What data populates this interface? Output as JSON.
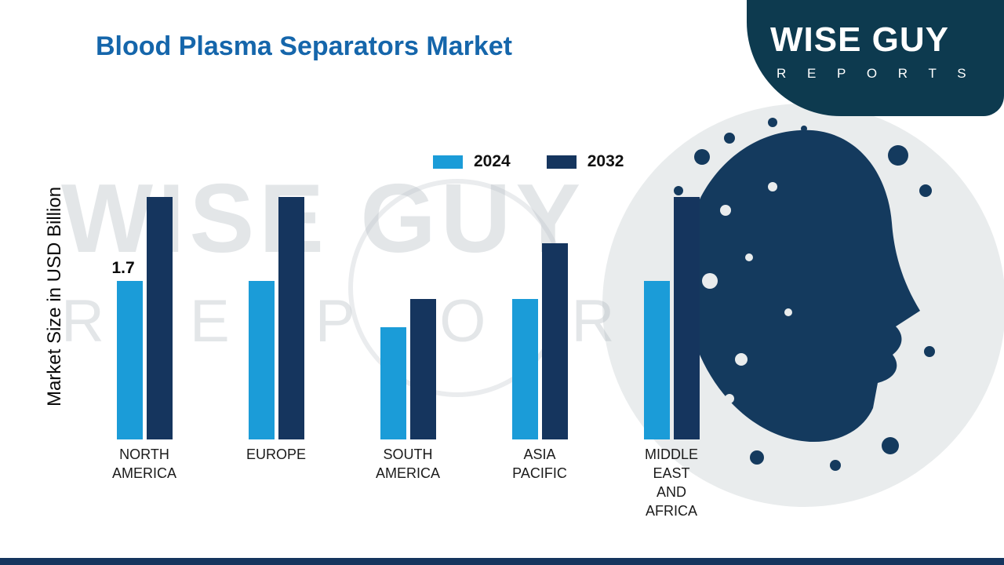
{
  "title": "Blood Plasma Separators Market",
  "ylabel": "Market Size in USD Billion",
  "brand": {
    "line1": "WISE GUY",
    "line2": "R E P O R T S"
  },
  "watermark": {
    "line1": "WISE GUY",
    "line2": "R E P O R T S"
  },
  "colors": {
    "title_blue": "#1566ab",
    "series_2024": "#1b9cd8",
    "series_2032": "#15355e",
    "brand_background": "#0d3a4f",
    "decorative_circle": "#e9eced",
    "bottom_strip": "#15355e"
  },
  "chart_data": {
    "type": "bar",
    "title": "Blood Plasma Separators Market",
    "xlabel": "",
    "ylabel": "Market Size in USD Billion",
    "ylim": [
      0,
      2.8
    ],
    "grid": false,
    "legend_position": "top",
    "categories": [
      "NORTH AMERICA",
      "EUROPE",
      "SOUTH AMERICA",
      "ASIA PACIFIC",
      "MIDDLE EAST AND AFRICA"
    ],
    "category_lines": [
      [
        "NORTH",
        "AMERICA"
      ],
      [
        "EUROPE"
      ],
      [
        "SOUTH",
        "AMERICA"
      ],
      [
        "ASIA",
        "PACIFIC"
      ],
      [
        "MIDDLE",
        "EAST",
        "AND",
        "AFRICA"
      ]
    ],
    "series": [
      {
        "name": "2024",
        "color": "#1b9cd8",
        "values": [
          1.7,
          1.7,
          1.2,
          1.5,
          1.7
        ],
        "labels": [
          "1.7",
          "",
          "",
          "",
          ""
        ]
      },
      {
        "name": "2032",
        "color": "#15355e",
        "values": [
          2.6,
          2.6,
          1.5,
          2.1,
          2.6
        ],
        "labels": [
          "",
          "",
          "",
          "",
          ""
        ]
      }
    ]
  }
}
